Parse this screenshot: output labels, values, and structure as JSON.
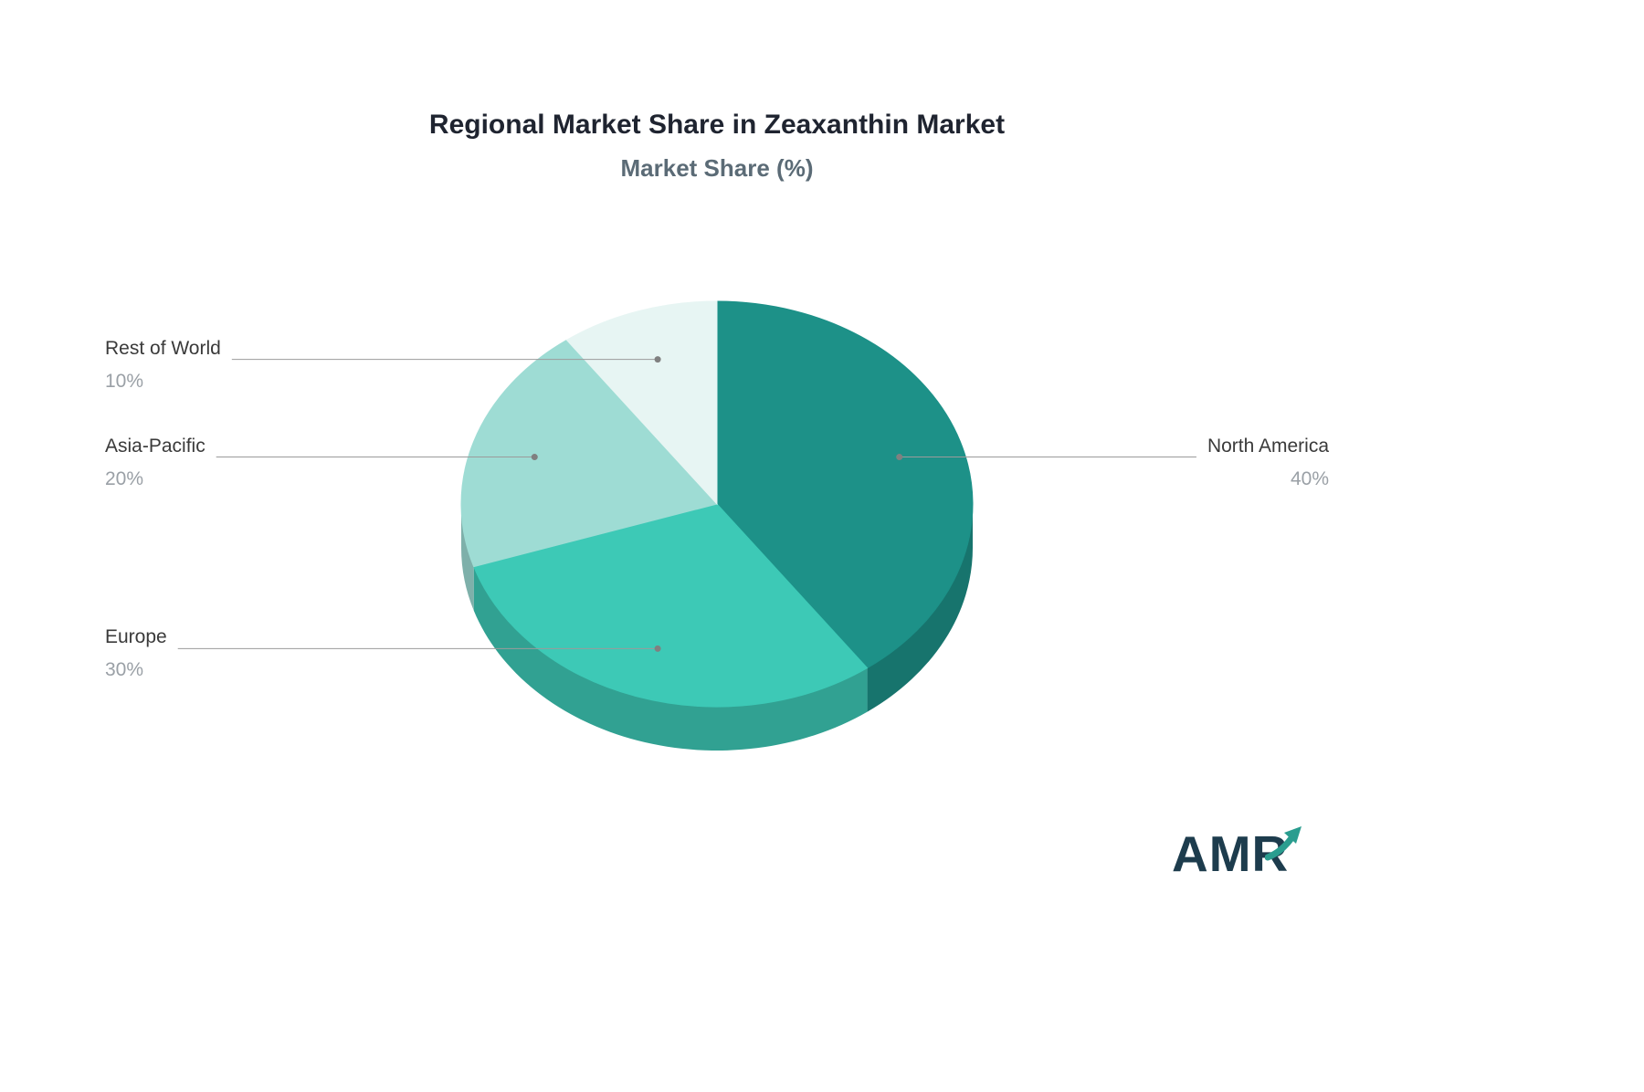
{
  "title": "Regional Market Share in Zeaxanthin Market",
  "subtitle": "Market Share (%)",
  "logo": {
    "text": "AMR"
  },
  "colors": {
    "accent": "#2a9d8f",
    "logo_text": "#1d3c4d",
    "label_name": "#3a3a3a",
    "label_value": "#9aa0a6",
    "leader_line": "#9b9b9b",
    "leader_dot": "#808080"
  },
  "chart_data": {
    "type": "pie",
    "style": "3d",
    "title": "Regional Market Share in Zeaxanthin Market",
    "subtitle": "Market Share (%)",
    "unit": "%",
    "categories": [
      "North America",
      "Europe",
      "Asia-Pacific",
      "Rest of World"
    ],
    "values": [
      40,
      30,
      20,
      10
    ],
    "labels": [
      "40%",
      "30%",
      "20%",
      "10%"
    ],
    "colors": [
      "#1d9188",
      "#3dc9b6",
      "#9edcd4",
      "#e7f5f3"
    ],
    "start_angle_deg": 0,
    "direction": "clockwise",
    "legend_position": "callout-lines",
    "grid": false
  }
}
